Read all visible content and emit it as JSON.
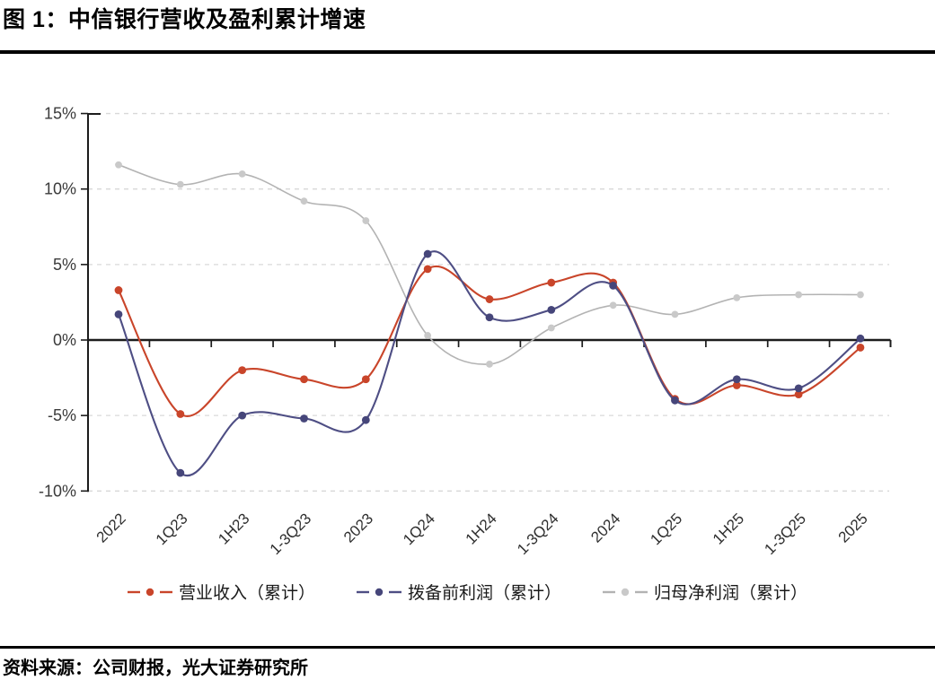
{
  "title": "图 1：中信银行营收及盈利累计增速",
  "source_note": "资料来源：公司财报，光大证券研究所",
  "chart_data": {
    "type": "line",
    "title": "图 1：中信银行营收及盈利累计增速",
    "unit": "%",
    "categories": [
      "2022",
      "1Q23",
      "1H23",
      "1-3Q23",
      "2023",
      "1Q24",
      "1H24",
      "1-3Q24",
      "2024",
      "1Q25",
      "1H25",
      "1-3Q25",
      "2025"
    ],
    "series": [
      {
        "name": "营业收入（累计）",
        "color": "#c9452a",
        "marker_color": "#c9452a",
        "values": [
          3.3,
          -4.9,
          -2.0,
          -2.6,
          -2.6,
          4.7,
          2.7,
          3.8,
          3.8,
          -3.9,
          -3.0,
          -3.6,
          -0.5
        ]
      },
      {
        "name": "拨备前利润（累计）",
        "color": "#4e4e84",
        "marker_color": "#46467a",
        "values": [
          1.7,
          -8.8,
          -5.0,
          -5.2,
          -5.3,
          5.7,
          1.5,
          2.0,
          3.6,
          -4.0,
          -2.6,
          -3.2,
          0.1
        ]
      },
      {
        "name": "归母净利润（累计）",
        "color": "#b3b3b3",
        "marker_color": "#c9c9c9",
        "values": [
          11.6,
          10.3,
          11.0,
          9.2,
          7.9,
          0.3,
          -1.6,
          0.8,
          2.3,
          1.7,
          2.8,
          3.0,
          3.0
        ]
      }
    ],
    "yticks": [
      15,
      10,
      5,
      0,
      -5,
      -10
    ],
    "ylim": [
      -10,
      15
    ],
    "xlabel": "",
    "ylabel": "",
    "grid": "horizontal-dashed",
    "zero_line": true,
    "legend_position": "bottom",
    "axis_color": "#1c1c1c",
    "grid_color": "#d8d8d8",
    "tick_label_color": "#3a3a3a"
  }
}
